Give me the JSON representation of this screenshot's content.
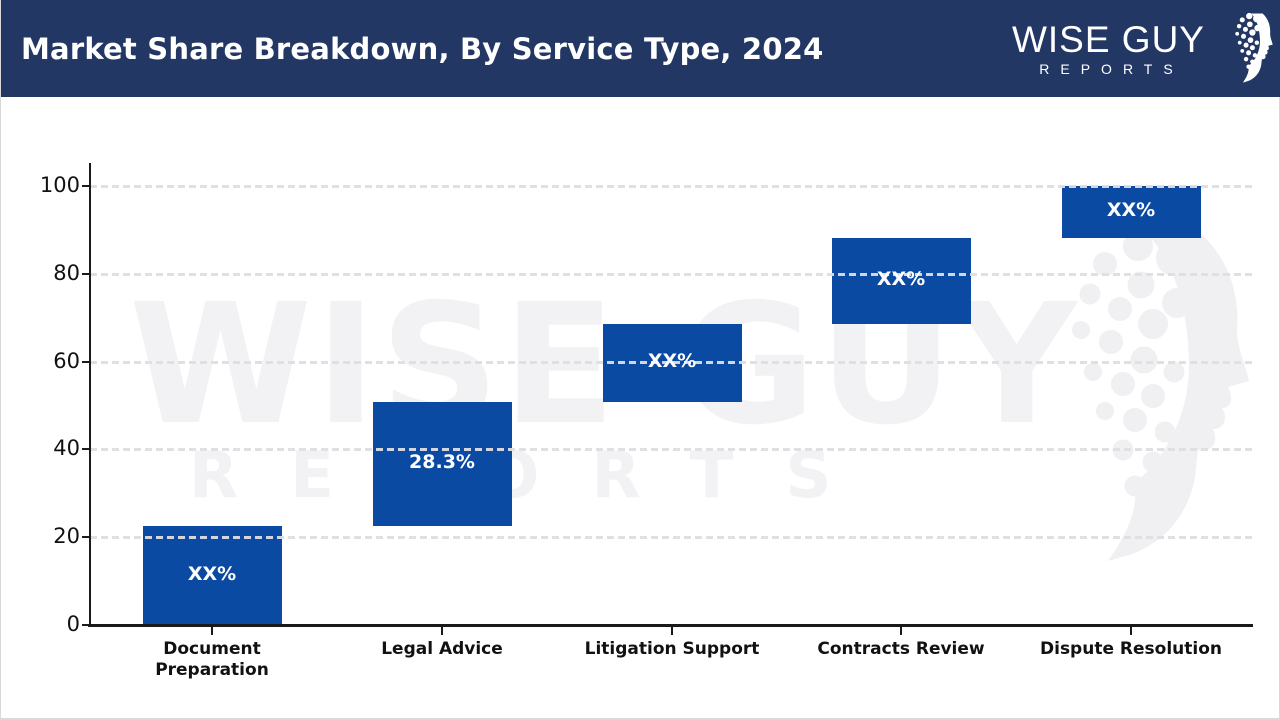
{
  "header": {
    "title": "Market Share Breakdown, By Service Type, 2024",
    "logo": {
      "wordmark": "WISE GUY",
      "subtext": "REPORTS"
    }
  },
  "watermark": {
    "line1": "WISE GUY",
    "line2": "REPORTS"
  },
  "chart_data": {
    "type": "bar",
    "subtype": "waterfall",
    "title": "Market Share Breakdown, By Service Type, 2024",
    "xlabel": "",
    "ylabel": "",
    "categories": [
      "Document\nPreparation",
      "Legal Advice",
      "Litigation Support",
      "Contracts Review",
      "Dispute Resolution"
    ],
    "segments": [
      {
        "category": "Document Preparation",
        "start": 0,
        "end": 22.5,
        "value": 22.5,
        "label": "XX%"
      },
      {
        "category": "Legal Advice",
        "start": 22.5,
        "end": 50.8,
        "value": 28.3,
        "label": "28.3%"
      },
      {
        "category": "Litigation Support",
        "start": 50.8,
        "end": 68.6,
        "value": 17.8,
        "label": "XX%"
      },
      {
        "category": "Contracts Review",
        "start": 68.6,
        "end": 88.2,
        "value": 19.6,
        "label": "XX%"
      },
      {
        "category": "Dispute Resolution",
        "start": 88.2,
        "end": 100,
        "value": 11.8,
        "label": "XX%"
      }
    ],
    "y_ticks": [
      0,
      20,
      40,
      60,
      80,
      100
    ],
    "ylim": [
      0,
      105
    ],
    "grid": "horizontal-dashed",
    "legend": false,
    "bar_color": "#0b4aa2",
    "bar_label_color": "#ffffff",
    "header_color": "#233764",
    "gridline_color": "#dededf",
    "axis_color": "#1a1a1a"
  }
}
